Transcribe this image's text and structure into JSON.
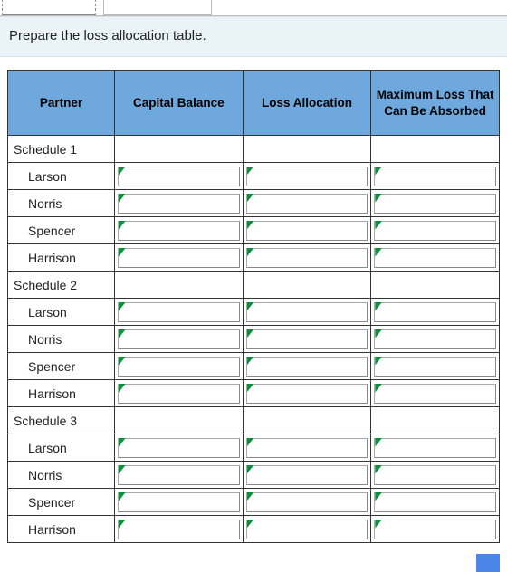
{
  "instruction": "Prepare the loss allocation table.",
  "columns": [
    "Partner",
    "Capital Balance",
    "Loss Allocation",
    "Maximum Loss That Can Be Absorbed"
  ],
  "colors": {
    "header_bg": "#6fa8dc",
    "instruction_bg": "#eaf3f8",
    "border": "#333333",
    "input_corner": "#0a8f3a"
  },
  "rows": [
    {
      "label": "Schedule 1",
      "indent": false,
      "inputs": false
    },
    {
      "label": "Larson",
      "indent": true,
      "inputs": true
    },
    {
      "label": "Norris",
      "indent": true,
      "inputs": true
    },
    {
      "label": "Spencer",
      "indent": true,
      "inputs": true
    },
    {
      "label": "Harrison",
      "indent": true,
      "inputs": true
    },
    {
      "label": "Schedule 2",
      "indent": false,
      "inputs": false
    },
    {
      "label": "Larson",
      "indent": true,
      "inputs": true
    },
    {
      "label": "Norris",
      "indent": true,
      "inputs": true
    },
    {
      "label": "Spencer",
      "indent": true,
      "inputs": true
    },
    {
      "label": "Harrison",
      "indent": true,
      "inputs": true
    },
    {
      "label": "Schedule 3",
      "indent": false,
      "inputs": false
    },
    {
      "label": "Larson",
      "indent": true,
      "inputs": true
    },
    {
      "label": "Norris",
      "indent": true,
      "inputs": true
    },
    {
      "label": "Spencer",
      "indent": true,
      "inputs": true
    },
    {
      "label": "Harrison",
      "indent": true,
      "inputs": true
    }
  ]
}
